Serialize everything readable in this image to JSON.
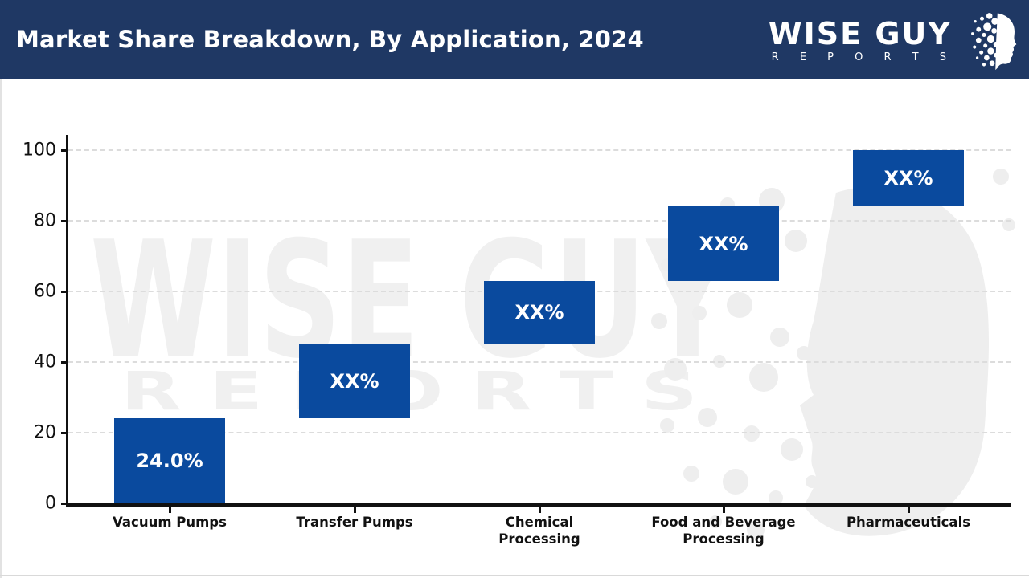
{
  "header": {
    "title": "Market Share Breakdown, By Application, 2024",
    "logo_line1": "WISE GUY",
    "logo_line2": "R E P O R T S"
  },
  "watermark": {
    "line1": "WISE GUY",
    "line2": "R E P O R T S"
  },
  "colors": {
    "header_bg": "#1F3864",
    "bar": "#0A4A9E",
    "axis": "#111111",
    "gridline": "#DCDCDC",
    "watermark": "#F0F0F0",
    "bar_label_text": "#FFFFFF",
    "title_text": "#FFFFFF"
  },
  "chart_data": {
    "type": "bar",
    "subtype": "waterfall",
    "title": "Market Share Breakdown, By Application, 2024",
    "categories": [
      "Vacuum Pumps",
      "Transfer Pumps",
      "Chemical Processing",
      "Food and Beverage Processing",
      "Pharmaceuticals"
    ],
    "category_label_lines": [
      [
        "Vacuum Pumps"
      ],
      [
        "Transfer Pumps"
      ],
      [
        "Chemical",
        "Processing"
      ],
      [
        "Food and Beverage",
        "Processing"
      ],
      [
        "Pharmaceuticals"
      ]
    ],
    "series": [
      {
        "name": "Market Share",
        "segments": [
          {
            "category": "Vacuum Pumps",
            "start": 0,
            "end": 24,
            "label": "24.0%"
          },
          {
            "category": "Transfer Pumps",
            "start": 24,
            "end": 45,
            "label": "XX%"
          },
          {
            "category": "Chemical Processing",
            "start": 45,
            "end": 63,
            "label": "XX%"
          },
          {
            "category": "Food and Beverage Processing",
            "start": 63,
            "end": 84,
            "label": "XX%"
          },
          {
            "category": "Pharmaceuticals",
            "start": 84,
            "end": 100,
            "label": "XX%"
          }
        ]
      }
    ],
    "xlabel": "",
    "ylabel": "",
    "ylim": [
      0,
      100
    ],
    "yticks": [
      0,
      20,
      40,
      60,
      80,
      100
    ],
    "grid": "horizontal-dashed",
    "legend": "none"
  }
}
